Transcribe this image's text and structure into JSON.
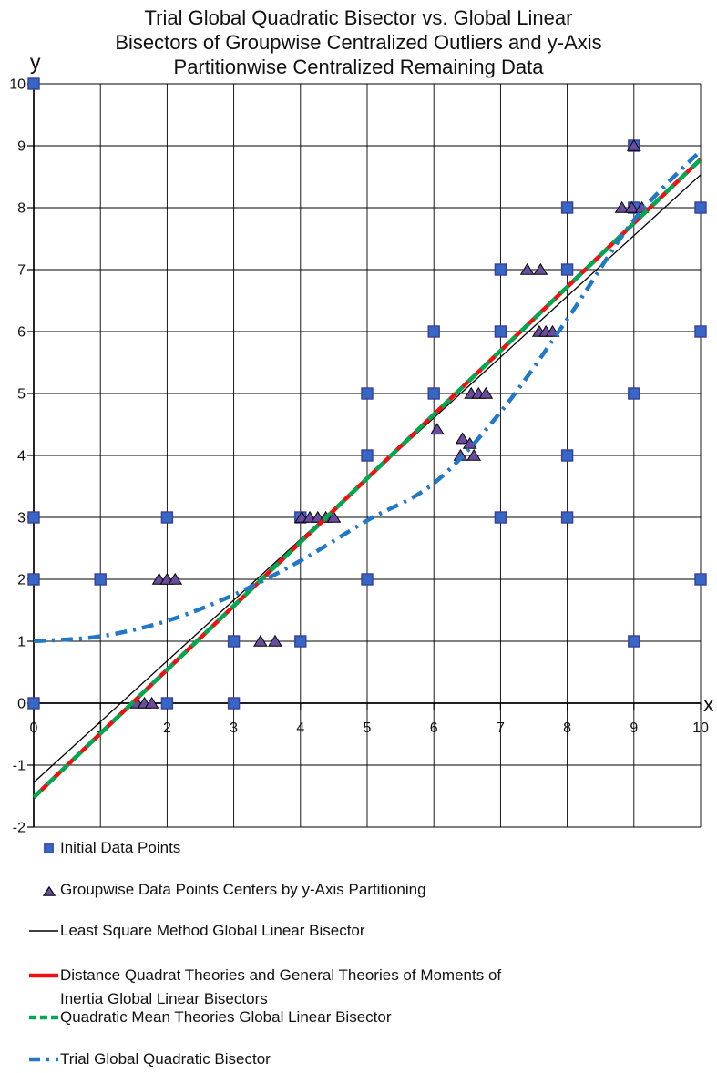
{
  "title": {
    "line1": "Trial Global Quadratic Bisector vs. Global Linear",
    "line2": "Bisectors of Groupwise Centralized Outliers and y-Axis",
    "line3": "Partitionwise Centralized Remaining Data"
  },
  "axes": {
    "x_label": "x",
    "y_label": "y",
    "x_ticks": [
      0,
      1,
      2,
      3,
      4,
      5,
      6,
      7,
      8,
      9,
      10
    ],
    "y_ticks": [
      10,
      9,
      8,
      7,
      6,
      5,
      4,
      3,
      2,
      1,
      0,
      -1,
      -2
    ]
  },
  "colors": {
    "grid": "#000000",
    "axis": "#000000",
    "text": "#111111",
    "square_fill": "#3667C4",
    "square_stroke": "#3A3F99",
    "triangle_fill": "#6A4C9E",
    "triangle_stroke": "#000000",
    "lsq_line": "#000000",
    "distance_line": "#EE1111",
    "quadratic_mean_line": "#00A84F",
    "trial_line": "#1F78C8"
  },
  "chart_data": {
    "type": "scatter",
    "title": "Trial Global Quadratic Bisector vs. Global Linear Bisectors of Groupwise Centralized Outliers and y-Axis Partitionwise Centralized Remaining Data",
    "xlabel": "x",
    "ylabel": "y",
    "xlim": [
      0,
      10
    ],
    "ylim": [
      -2,
      10
    ],
    "grid": true,
    "legend_position": "bottom-left",
    "series": [
      {
        "name": "Initial Data Points",
        "kind": "scatter",
        "marker": "square",
        "color": "#3667C4",
        "points": [
          [
            0,
            0
          ],
          [
            2,
            0
          ],
          [
            3,
            0
          ],
          [
            3,
            1
          ],
          [
            4,
            1
          ],
          [
            9,
            1
          ],
          [
            0,
            2
          ],
          [
            1,
            2
          ],
          [
            5,
            2
          ],
          [
            10,
            2
          ],
          [
            0,
            3
          ],
          [
            2,
            3
          ],
          [
            4,
            3
          ],
          [
            7,
            3
          ],
          [
            8,
            3
          ],
          [
            5,
            4
          ],
          [
            8,
            4
          ],
          [
            5,
            5
          ],
          [
            6,
            5
          ],
          [
            9,
            5
          ],
          [
            6,
            6
          ],
          [
            7,
            6
          ],
          [
            10,
            6
          ],
          [
            7,
            7
          ],
          [
            8,
            7
          ],
          [
            8,
            8
          ],
          [
            9,
            8
          ],
          [
            10,
            8
          ],
          [
            9,
            9
          ],
          [
            0,
            10
          ]
        ]
      },
      {
        "name": "Groupwise Data Points Centers by y-Axis Partitioning",
        "kind": "scatter",
        "marker": "triangle",
        "color": "#6A4C9E",
        "points": [
          [
            1.55,
            0
          ],
          [
            1.66,
            0
          ],
          [
            1.77,
            0
          ],
          [
            3.4,
            1
          ],
          [
            3.62,
            1
          ],
          [
            1.88,
            2
          ],
          [
            2.0,
            2
          ],
          [
            2.12,
            2
          ],
          [
            4.02,
            3
          ],
          [
            4.14,
            3
          ],
          [
            4.26,
            3
          ],
          [
            4.38,
            3
          ],
          [
            4.5,
            3
          ],
          [
            6.4,
            4
          ],
          [
            6.6,
            4
          ],
          [
            6.43,
            4.27
          ],
          [
            6.54,
            4.19
          ],
          [
            6.05,
            4.42
          ],
          [
            6.56,
            5
          ],
          [
            6.67,
            5
          ],
          [
            6.78,
            5
          ],
          [
            7.58,
            6
          ],
          [
            7.68,
            6
          ],
          [
            7.78,
            6
          ],
          [
            7.4,
            7
          ],
          [
            7.6,
            7
          ],
          [
            8.82,
            8
          ],
          [
            8.97,
            8
          ],
          [
            9.12,
            8
          ],
          [
            9.0,
            9
          ]
        ]
      },
      {
        "name": "Least Square Method Global Linear Bisector",
        "kind": "line",
        "style": "solid",
        "width": 1.3,
        "color": "#000000",
        "points": [
          [
            0,
            -1.28
          ],
          [
            10,
            8.53
          ]
        ]
      },
      {
        "name": "Distance Quadrat Theories and General Theories of Moments of Inertia Global Linear Bisectors",
        "kind": "line",
        "style": "solid",
        "width": 4.5,
        "color": "#EE1111",
        "points": [
          [
            0,
            -1.52
          ],
          [
            10,
            8.78
          ]
        ]
      },
      {
        "name": "Quadratic Mean Theories Global Linear Bisector",
        "kind": "line",
        "style": "dashed",
        "width": 4.5,
        "color": "#00A84F",
        "points": [
          [
            0,
            -1.52
          ],
          [
            10,
            8.78
          ]
        ]
      },
      {
        "name": "Trial Global Quadratic Bisector",
        "kind": "line",
        "style": "dashdot",
        "width": 4.5,
        "color": "#1F78C8",
        "points": [
          [
            0,
            1.0
          ],
          [
            1,
            1.08
          ],
          [
            2,
            1.33
          ],
          [
            3,
            1.75
          ],
          [
            4,
            2.3
          ],
          [
            5,
            2.95
          ],
          [
            6,
            3.55
          ],
          [
            7,
            4.7
          ],
          [
            8,
            6.2
          ],
          [
            9,
            7.8
          ],
          [
            10,
            8.92
          ]
        ]
      }
    ]
  }
}
